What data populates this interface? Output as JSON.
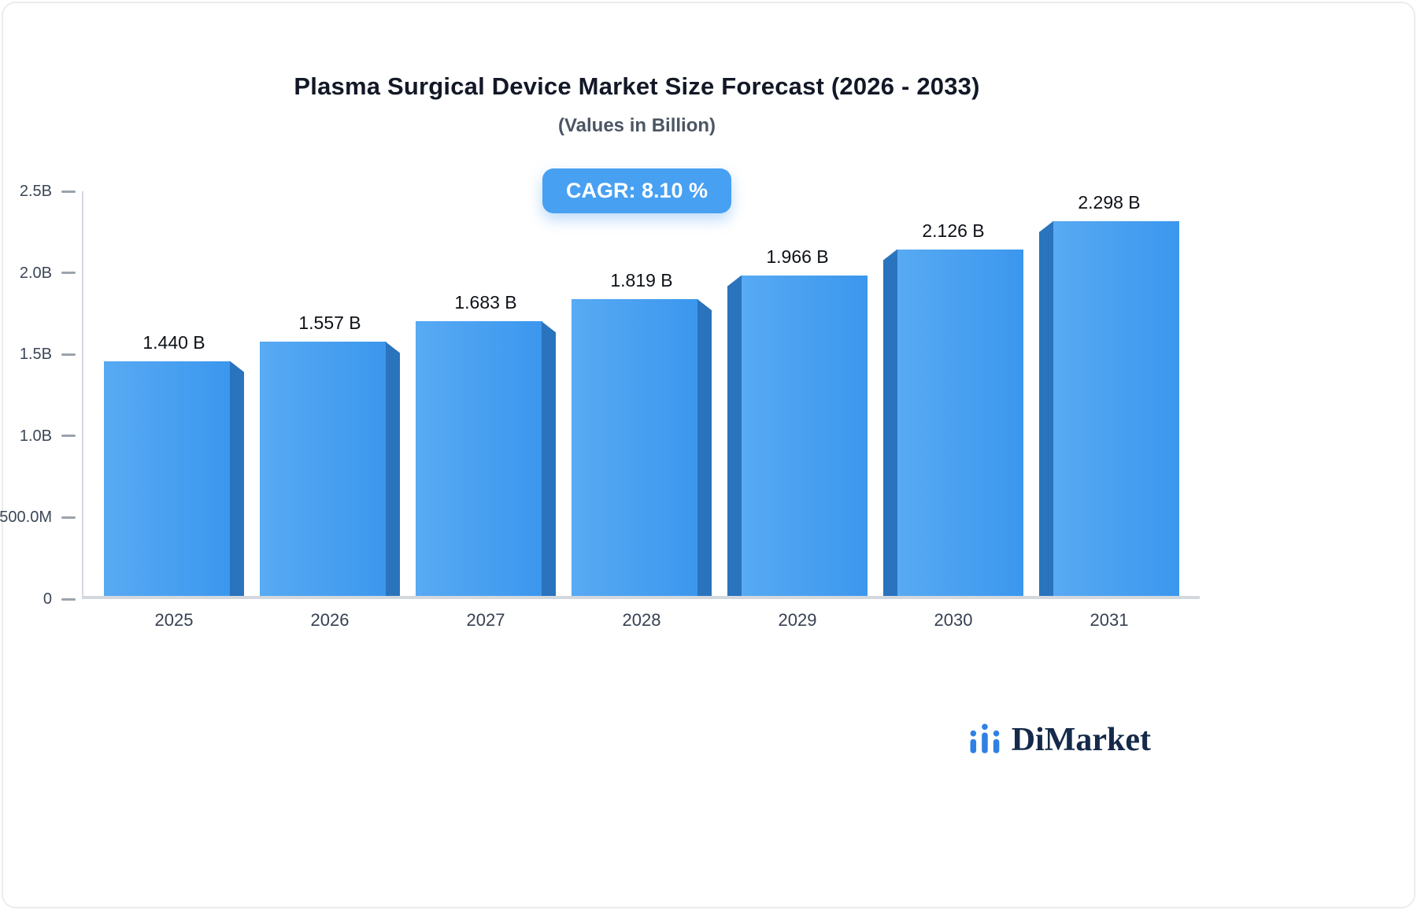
{
  "title": "Plasma Surgical Device Market Size Forecast (2026 - 2033)",
  "subtitle": "(Values in Billion)",
  "badge": {
    "label": "CAGR: 8.10 %"
  },
  "logo": {
    "text": "DiMarket",
    "icon": "bar-chart-logo-icon"
  },
  "colors": {
    "bar_face": "#3b97ee",
    "bar_face_light": "#58aaf3",
    "bar_side": "#2a73bd",
    "badge_bg": "#47a0f2",
    "axis_line": "#d3d8de",
    "tick": "#9aa3ad",
    "value_label": "#0d1117",
    "axis_label": "#3b4656",
    "logo_text": "#152a4a",
    "logo_icon": "#2f80e4"
  },
  "chart_data": {
    "type": "bar",
    "title": "Plasma Surgical Device Market Size Forecast (2026 - 2033)",
    "subtitle": "(Values in Billion)",
    "categories": [
      "2025",
      "2026",
      "2027",
      "2028",
      "2029",
      "2030",
      "2031"
    ],
    "values": [
      1.44,
      1.557,
      1.683,
      1.819,
      1.966,
      2.126,
      2.298
    ],
    "value_labels": [
      "1.440 B",
      "1.557 B",
      "1.683 B",
      "1.819 B",
      "1.966 B",
      "2.126 B",
      "2.298 B"
    ],
    "unit": "Billion",
    "xlabel": "",
    "ylabel": "",
    "ylim": [
      0,
      2.5
    ],
    "y_ticks": [
      {
        "label": "2.5B",
        "value": 2.5
      },
      {
        "label": "2.0B",
        "value": 2.0
      },
      {
        "label": "1.5B",
        "value": 1.5
      },
      {
        "label": "1.0B",
        "value": 1.0
      },
      {
        "label": "500.0M",
        "value": 0.5
      },
      {
        "label": "0",
        "value": 0
      }
    ],
    "grid": false,
    "legend": false,
    "annotations": [
      "CAGR: 8.10 %"
    ]
  }
}
